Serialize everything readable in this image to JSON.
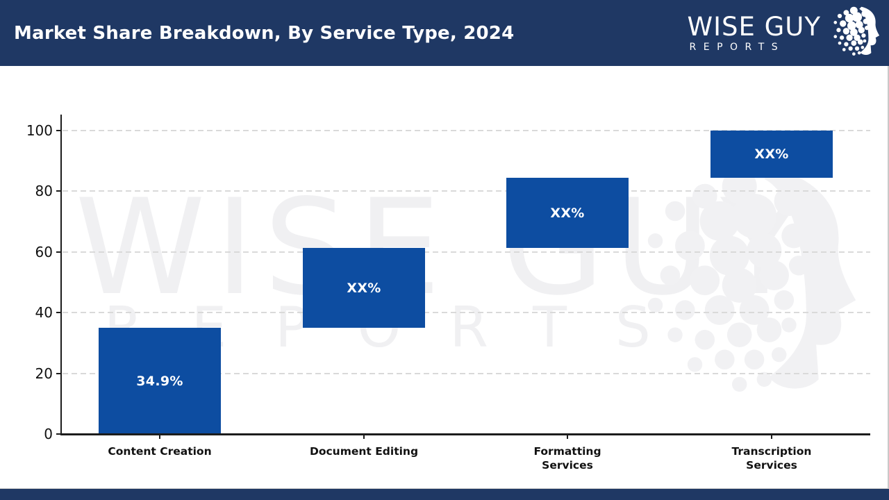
{
  "header": {
    "title": "Market Share Breakdown, By Service Type, 2024",
    "logo": {
      "brand_line1": "WISE GUY",
      "brand_line2": "REPORTS"
    }
  },
  "watermark": {
    "line1": "WISE GUY",
    "line2": "REPORTS"
  },
  "chart_data": {
    "type": "bar",
    "variant": "floating-step-bars",
    "title": "Market Share Breakdown, By Service Type, 2024",
    "categories": [
      "Content Creation",
      "Document Editing",
      "Formatting\nServices",
      "Transcription\nServices"
    ],
    "bars": [
      {
        "category": "Content Creation",
        "start": 0,
        "end": 34.9,
        "label": "34.9%"
      },
      {
        "category": "Document Editing",
        "start": 34.9,
        "end": 61.2,
        "label": "XX%"
      },
      {
        "category": "Formatting\nServices",
        "start": 61.2,
        "end": 84.3,
        "label": "XX%"
      },
      {
        "category": "Transcription\nServices",
        "start": 84.3,
        "end": 100,
        "label": "XX%"
      }
    ],
    "yticks": [
      0,
      20,
      40,
      60,
      80,
      100
    ],
    "ylim": [
      0,
      105
    ],
    "xlabel": "",
    "ylabel": "",
    "grid": "horizontal-dashed",
    "legend": "none"
  },
  "colors": {
    "header_bg": "#1f3864",
    "footer_bg": "#1f3864",
    "bar": "#0d4da1",
    "bar_label": "#ffffff",
    "grid": "#d9d9d9",
    "axis": "#1c1c1c",
    "watermark": "#f0f0f2",
    "canvas_border": "#c9c9c9"
  }
}
